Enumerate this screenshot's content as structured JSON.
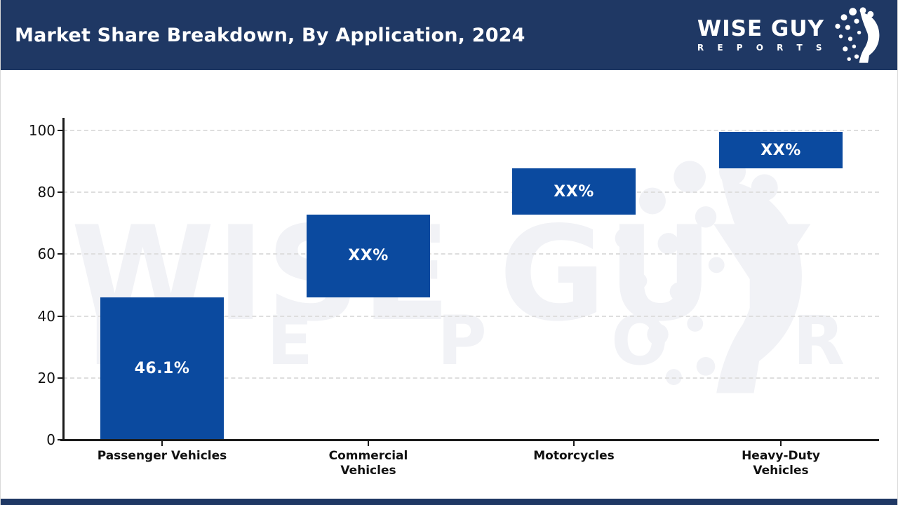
{
  "header": {
    "title": "Market Share Breakdown, By Application, 2024",
    "logo": {
      "line1": "WISE GUY",
      "line2": "R E P O R T S"
    }
  },
  "watermark": {
    "line1": "WISE GUY",
    "line2": "R E P O R T S"
  },
  "colors": {
    "header_bg": "#1f3864",
    "footer_bg": "#1f3864",
    "bar": "#0b4a9f",
    "axis": "#1a1a1a",
    "grid": "#dedede",
    "watermark": "#f1f2f6",
    "bar_label": "#ffffff"
  },
  "chart_data": {
    "type": "bar",
    "subtype": "waterfall",
    "title": "Market Share Breakdown, By Application, 2024",
    "categories": [
      "Passenger Vehicles",
      "Commercial\nVehicles",
      "Motorcycles",
      "Heavy-Duty\nVehicles"
    ],
    "segments": [
      {
        "category": "Passenger Vehicles",
        "start": 0,
        "end": 46.1
      },
      {
        "category": "Commercial Vehicles",
        "start": 46.1,
        "end": 72.8
      },
      {
        "category": "Motorcycles",
        "start": 72.8,
        "end": 87.7
      },
      {
        "category": "Heavy-Duty Vehicles",
        "start": 87.7,
        "end": 99.5
      }
    ],
    "bar_labels": [
      "46.1%",
      "XX%",
      "XX%",
      "XX%"
    ],
    "y_ticks": [
      0,
      20,
      40,
      60,
      80,
      100
    ],
    "ylim": [
      0,
      104
    ],
    "xlabel": "",
    "ylabel": "",
    "grid": "dashed-horizontal",
    "legend": "none"
  }
}
